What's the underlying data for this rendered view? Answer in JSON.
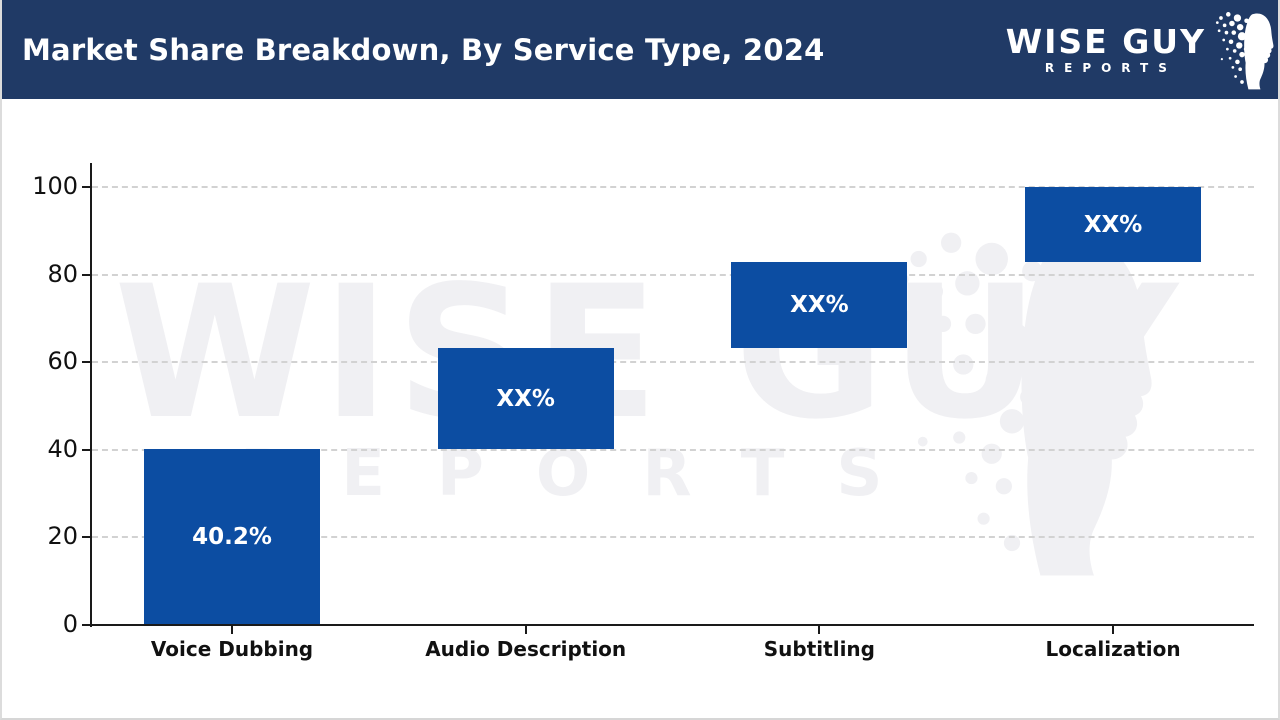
{
  "header": {
    "title": "Market Share Breakdown, By Service Type, 2024",
    "logo": {
      "line1": "WISE GUY",
      "line2": "REPORTS"
    }
  },
  "watermark": {
    "line1": "WISE GUY",
    "line2": "REPORTS"
  },
  "chart_data": {
    "type": "bar",
    "subtype": "waterfall",
    "title": "Market Share Breakdown, By Service Type, 2024",
    "categories": [
      "Voice Dubbing",
      "Audio Description",
      "Subtitling",
      "Localization"
    ],
    "segments": [
      {
        "category": "Voice Dubbing",
        "start": 0,
        "end": 40.2,
        "value_label": "40.2%"
      },
      {
        "category": "Audio Description",
        "start": 40.2,
        "end": 63.2,
        "value_label": "XX%"
      },
      {
        "category": "Subtitling",
        "start": 63.2,
        "end": 82.8,
        "value_label": "XX%"
      },
      {
        "category": "Localization",
        "start": 82.8,
        "end": 100,
        "value_label": "XX%"
      }
    ],
    "yticks": [
      0,
      20,
      40,
      60,
      80,
      100
    ],
    "ylim": [
      0,
      105.5
    ],
    "xlabel": "",
    "ylabel": "",
    "grid": "dashed-horizontal",
    "legend": "none"
  },
  "colors": {
    "header_bg": "#203A66",
    "bar": "#0C4DA2",
    "bar_value_text": "#ffffff",
    "gridline": "#d2d2d2",
    "axis": "#1a1a1a",
    "watermark": "#f0f0f3",
    "edge_border": "#dcdcdc"
  }
}
